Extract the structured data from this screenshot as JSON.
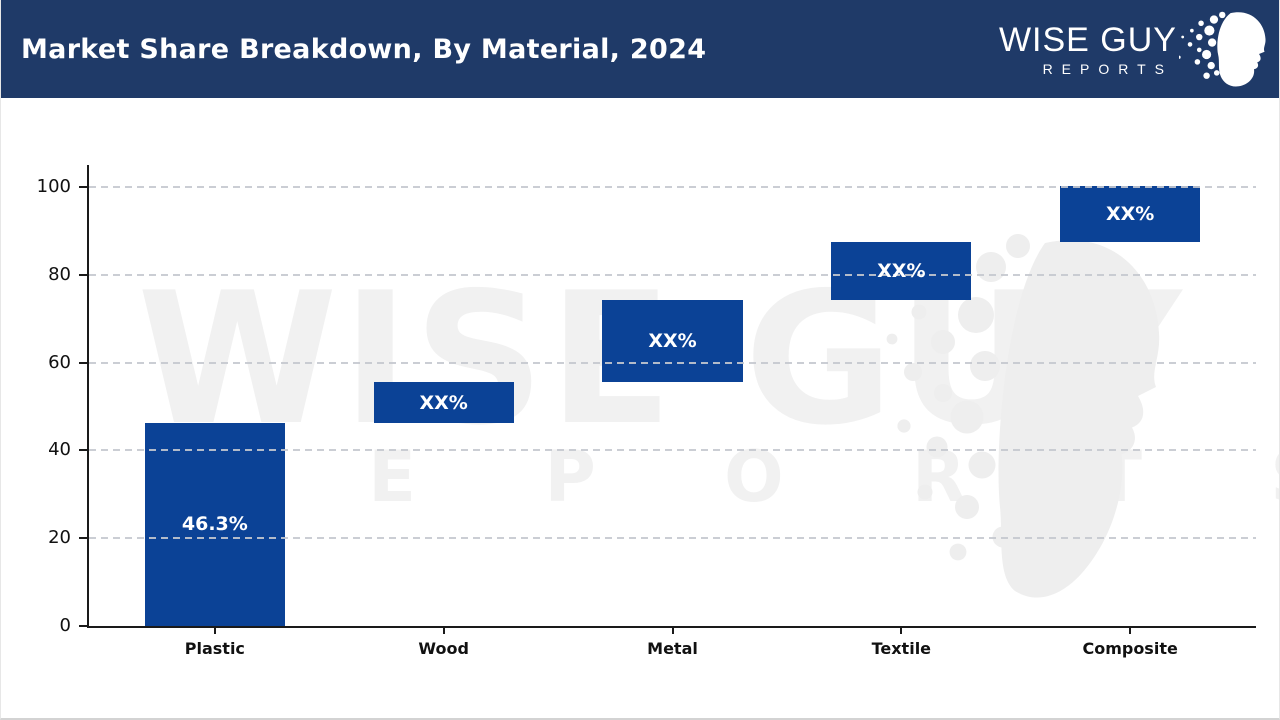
{
  "header": {
    "title": "Market Share Breakdown, By Material, 2024",
    "logo": {
      "line1": "WISE GUY",
      "line2": "REPORTS"
    }
  },
  "watermark": {
    "line1": "WISE GUY",
    "line2": "R E P O R T S"
  },
  "colors": {
    "header_bg": "#1f3a68",
    "bar": "#0b4296",
    "grid": "#c5c8cf",
    "axis": "#1a1a1a",
    "bar_label_text": "#ffffff",
    "watermark": "#f1f1f1"
  },
  "chart_data": {
    "type": "bar",
    "subtype": "waterfall",
    "title": "Market Share Breakdown, By Material, 2024",
    "categories": [
      "Plastic",
      "Wood",
      "Metal",
      "Textile",
      "Composite"
    ],
    "segments": [
      {
        "category": "Plastic",
        "start": 0,
        "end": 46.3,
        "label": "46.3%"
      },
      {
        "category": "Wood",
        "start": 46.3,
        "end": 55.5,
        "label": "XX%"
      },
      {
        "category": "Metal",
        "start": 55.5,
        "end": 74.2,
        "label": "XX%"
      },
      {
        "category": "Textile",
        "start": 74.2,
        "end": 87.5,
        "label": "XX%"
      },
      {
        "category": "Composite",
        "start": 87.5,
        "end": 100.3,
        "label": "XX%"
      }
    ],
    "yticks": [
      0,
      20,
      40,
      60,
      80,
      100
    ],
    "ylim": [
      0,
      105
    ],
    "xlabel": "",
    "ylabel": "",
    "grid": "horizontal dashed, drawn above bars",
    "legend": "none"
  }
}
